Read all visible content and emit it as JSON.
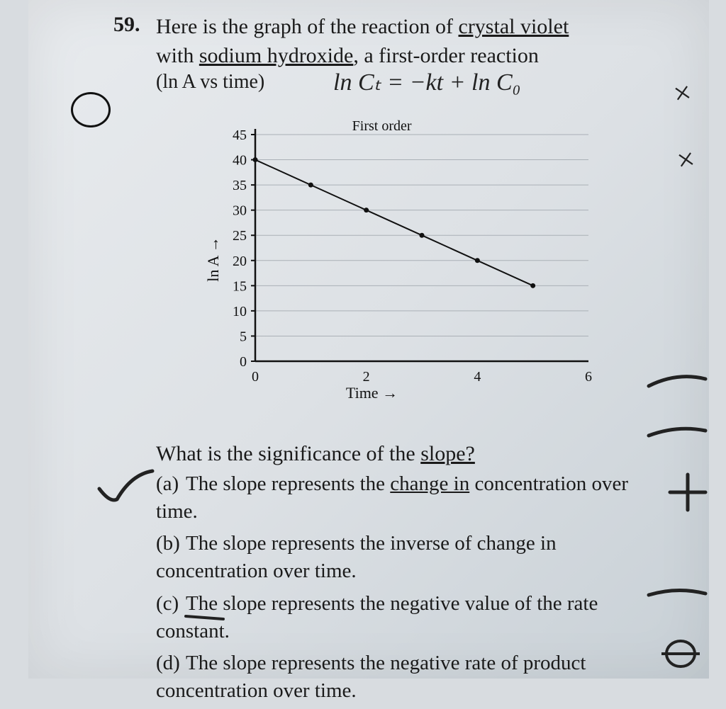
{
  "question": {
    "number": "59.",
    "text_line1": "Here is the graph of the reaction of ",
    "text_underlined1": "crystal violet",
    "text_line2": "with ",
    "text_underlined2": "sodium hydroxide",
    "text_line2_tail": ", a first-order reaction",
    "sub": "(ln A vs time)",
    "what": "What is the significance of the ",
    "what_underlined": "slope?"
  },
  "handwritten_eq": "ln Cₜ = −kt + ln C₀",
  "chart": {
    "type": "line",
    "title": "First order",
    "xlabel": "Time →",
    "ylabel": "ln A →",
    "xlim": [
      0,
      6
    ],
    "ylim": [
      0,
      45
    ],
    "xticks": [
      0,
      2,
      4,
      6
    ],
    "yticks": [
      0,
      5,
      10,
      15,
      20,
      25,
      30,
      35,
      40,
      45
    ],
    "bg": "#e8ebee",
    "axis_color": "#111111",
    "grid_color": "#aab0b6",
    "tick_label_fontsize": 20,
    "axis_label_fontsize": 22,
    "title_fontsize": 20,
    "line_color": "#111111",
    "line_width": 2,
    "marker": "circle",
    "marker_color": "#111111",
    "marker_size": 7,
    "points_x": [
      0,
      1,
      2,
      3,
      4,
      5
    ],
    "points_y": [
      40,
      35,
      30,
      25,
      20,
      15
    ]
  },
  "options": {
    "a": {
      "label": "(a)",
      "text": "The slope represents the ",
      "underlined": "change in",
      "text2": " concentration over time."
    },
    "b": {
      "label": "(b)",
      "text": "The slope represents the inverse of change in concentration over time."
    },
    "c": {
      "label": "(c)",
      "text": "The slope represents the negative value of the rate constant."
    },
    "d": {
      "label": "(d)",
      "text": "The slope represents the negative rate of product concentration over time."
    }
  },
  "colors": {
    "ink": "#1a1a1a",
    "pen": "#222222"
  }
}
